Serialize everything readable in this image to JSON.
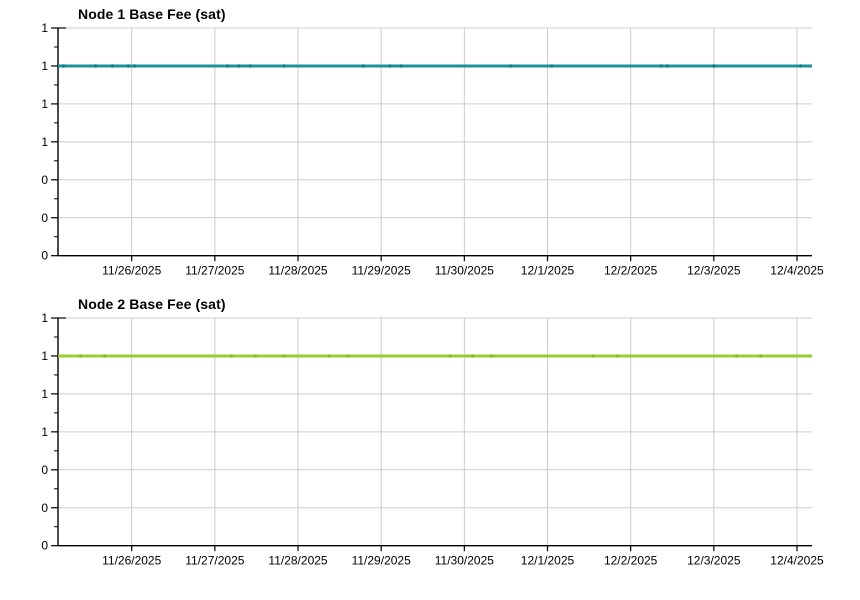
{
  "page": {
    "background": "#ffffff"
  },
  "chart_data": [
    {
      "type": "line",
      "title": "Node 1 Base Fee (sat)",
      "x_tick_labels": [
        "11/26/2025",
        "11/27/2025",
        "11/28/2025",
        "11/29/2025",
        "11/30/2025",
        "12/1/2025",
        "12/2/2025",
        "12/3/2025",
        "12/4/2025"
      ],
      "y_tick_labels": [
        "1",
        "1",
        "1",
        "1",
        "0",
        "0",
        "0"
      ],
      "y_tick_values": [
        1.2,
        1.0,
        0.8,
        0.6,
        0.4,
        0.2,
        0.0
      ],
      "ylim": [
        0.0,
        1.2
      ],
      "grid": true,
      "legend": "none",
      "series": [
        {
          "name": "Node 1 base fee",
          "constant_value": 1.0,
          "unit": "sat",
          "line_color": "#1a939c",
          "marker_color": "#0f7d87",
          "marker_x_fracs": [
            0.007,
            0.05,
            0.072,
            0.093,
            0.102,
            0.225,
            0.24,
            0.255,
            0.3,
            0.405,
            0.44,
            0.455,
            0.6,
            0.655,
            0.8,
            0.808,
            0.87,
            0.985
          ]
        }
      ]
    },
    {
      "type": "line",
      "title": "Node 2 Base Fee (sat)",
      "x_tick_labels": [
        "11/26/2025",
        "11/27/2025",
        "11/28/2025",
        "11/29/2025",
        "11/30/2025",
        "12/1/2025",
        "12/2/2025",
        "12/3/2025",
        "12/4/2025"
      ],
      "y_tick_labels": [
        "1",
        "1",
        "1",
        "1",
        "0",
        "0",
        "0"
      ],
      "y_tick_values": [
        1.2,
        1.0,
        0.8,
        0.6,
        0.4,
        0.2,
        0.0
      ],
      "ylim": [
        0.0,
        1.2
      ],
      "grid": true,
      "legend": "none",
      "series": [
        {
          "name": "Node 2 base fee",
          "constant_value": 1.0,
          "unit": "sat",
          "line_color": "#9acd32",
          "marker_color": "#8ab92e",
          "marker_x_fracs": [
            0.03,
            0.062,
            0.23,
            0.262,
            0.3,
            0.36,
            0.385,
            0.52,
            0.55,
            0.575,
            0.71,
            0.742,
            0.9,
            0.932
          ]
        }
      ]
    }
  ],
  "style": {
    "axis_color": "#000000",
    "grid_color": "#cccccc",
    "label_color": "#000000"
  }
}
